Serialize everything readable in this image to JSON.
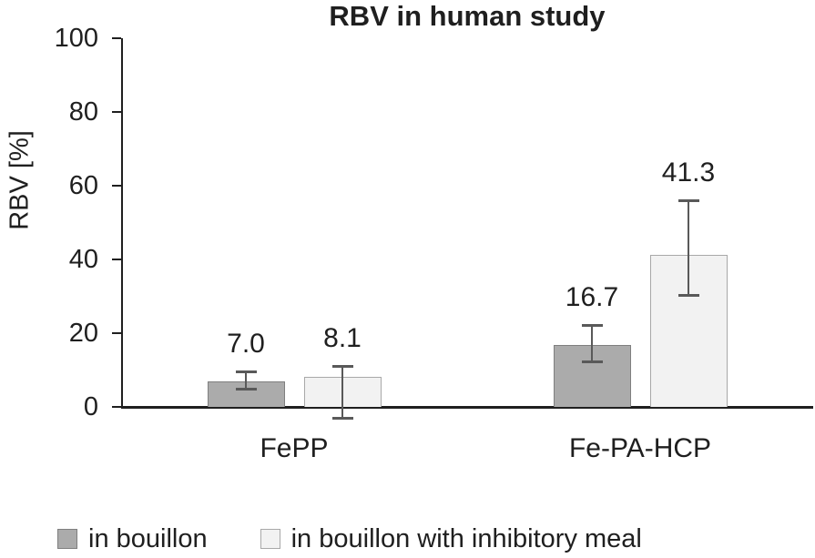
{
  "chart_data": {
    "type": "bar",
    "title": "RBV in human study",
    "ylabel": "RBV [%]",
    "xlabel": "",
    "ylim": [
      0,
      100
    ],
    "yticks": [
      0,
      20,
      40,
      60,
      80,
      100
    ],
    "grid": false,
    "legend_position": "bottom",
    "categories": [
      "FePP",
      "Fe-PA-HCP"
    ],
    "series": [
      {
        "name": "in bouillon",
        "values": [
          7.0,
          16.7
        ],
        "error_up": [
          2.6,
          5.5
        ],
        "error_down": [
          2.3,
          4.6
        ],
        "fill": "#ababab",
        "border": "#7f7f7f"
      },
      {
        "name": "in bouillon with inhibitory meal",
        "values": [
          8.1,
          41.3
        ],
        "error_up": [
          3.0,
          14.7
        ],
        "error_down": [
          11.2,
          11.2
        ],
        "fill": "#f2f2f2",
        "border": "#a8a8a8"
      }
    ],
    "data_labels": [
      [
        "7.0",
        "16.7"
      ],
      [
        "8.1",
        "41.3"
      ]
    ],
    "colors": {
      "axis": "#1f1f1f",
      "error_bar": "#595959",
      "text": "#1f1f1f",
      "background": "#ffffff"
    }
  }
}
